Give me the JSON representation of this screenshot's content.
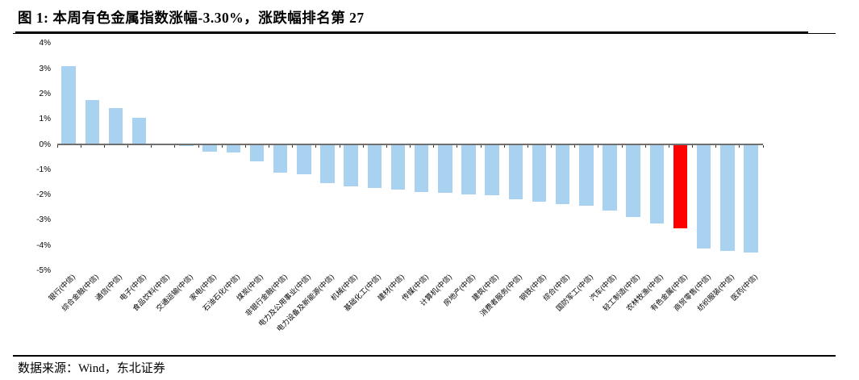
{
  "header": {
    "figure_title": "图 1: 本周有色金属指数涨幅-3.30%，涨跌幅排名第 27"
  },
  "footer": {
    "source_text": "数据来源：Wind，东北证券"
  },
  "chart_data": {
    "type": "bar",
    "title": "本周有色金属指数涨幅-3.30%，涨跌幅排名第 27",
    "categories": [
      "银行(中信)",
      "综合金融(中信)",
      "通信(中信)",
      "电子(中信)",
      "食品饮料(中信)",
      "交通运输(中信)",
      "家电(中信)",
      "石油石化(中信)",
      "煤炭(中信)",
      "非银行金融(中信)",
      "电力及公用事业(中信)",
      "电力设备及新能源(中信)",
      "机械(中信)",
      "基础化工(中信)",
      "建材(中信)",
      "传媒(中信)",
      "计算机(中信)",
      "房地产(中信)",
      "建筑(中信)",
      "消费者服务(中信)",
      "钢铁(中信)",
      "综合(中信)",
      "国防军工(中信)",
      "汽车(中信)",
      "轻工制造(中信)",
      "农林牧渔(中信)",
      "有色金属(中信)",
      "商贸零售(中信)",
      "纺织服装(中信)",
      "医药(中信)"
    ],
    "values": [
      3.1,
      1.75,
      1.45,
      1.05,
      0.0,
      -0.05,
      -0.25,
      -0.3,
      -0.65,
      -1.1,
      -1.15,
      -1.5,
      -1.65,
      -1.7,
      -1.75,
      -1.85,
      -1.9,
      -1.95,
      -2.0,
      -2.15,
      -2.25,
      -2.35,
      -2.4,
      -2.6,
      -2.85,
      -3.1,
      -3.3,
      -4.1,
      -4.2,
      -4.25
    ],
    "unit": "%",
    "highlight_category": "有色金属(中信)",
    "highlight_index": 26,
    "highlight_value": -3.3,
    "highlight_rank": 27,
    "bar_color": "#A8D2F0",
    "highlight_color": "#FF0000",
    "xlabel": "",
    "ylabel": "",
    "ylim": [
      -5,
      4
    ],
    "yticks": [
      4,
      3,
      2,
      1,
      0,
      -1,
      -2,
      -3,
      -4,
      -5
    ],
    "ytick_labels": [
      "4%",
      "3%",
      "2%",
      "1%",
      "0%",
      "-1%",
      "-2%",
      "-3%",
      "-4%",
      "-5%"
    ],
    "grid": false,
    "legend": "none",
    "category_label_rotation_deg": 45
  }
}
